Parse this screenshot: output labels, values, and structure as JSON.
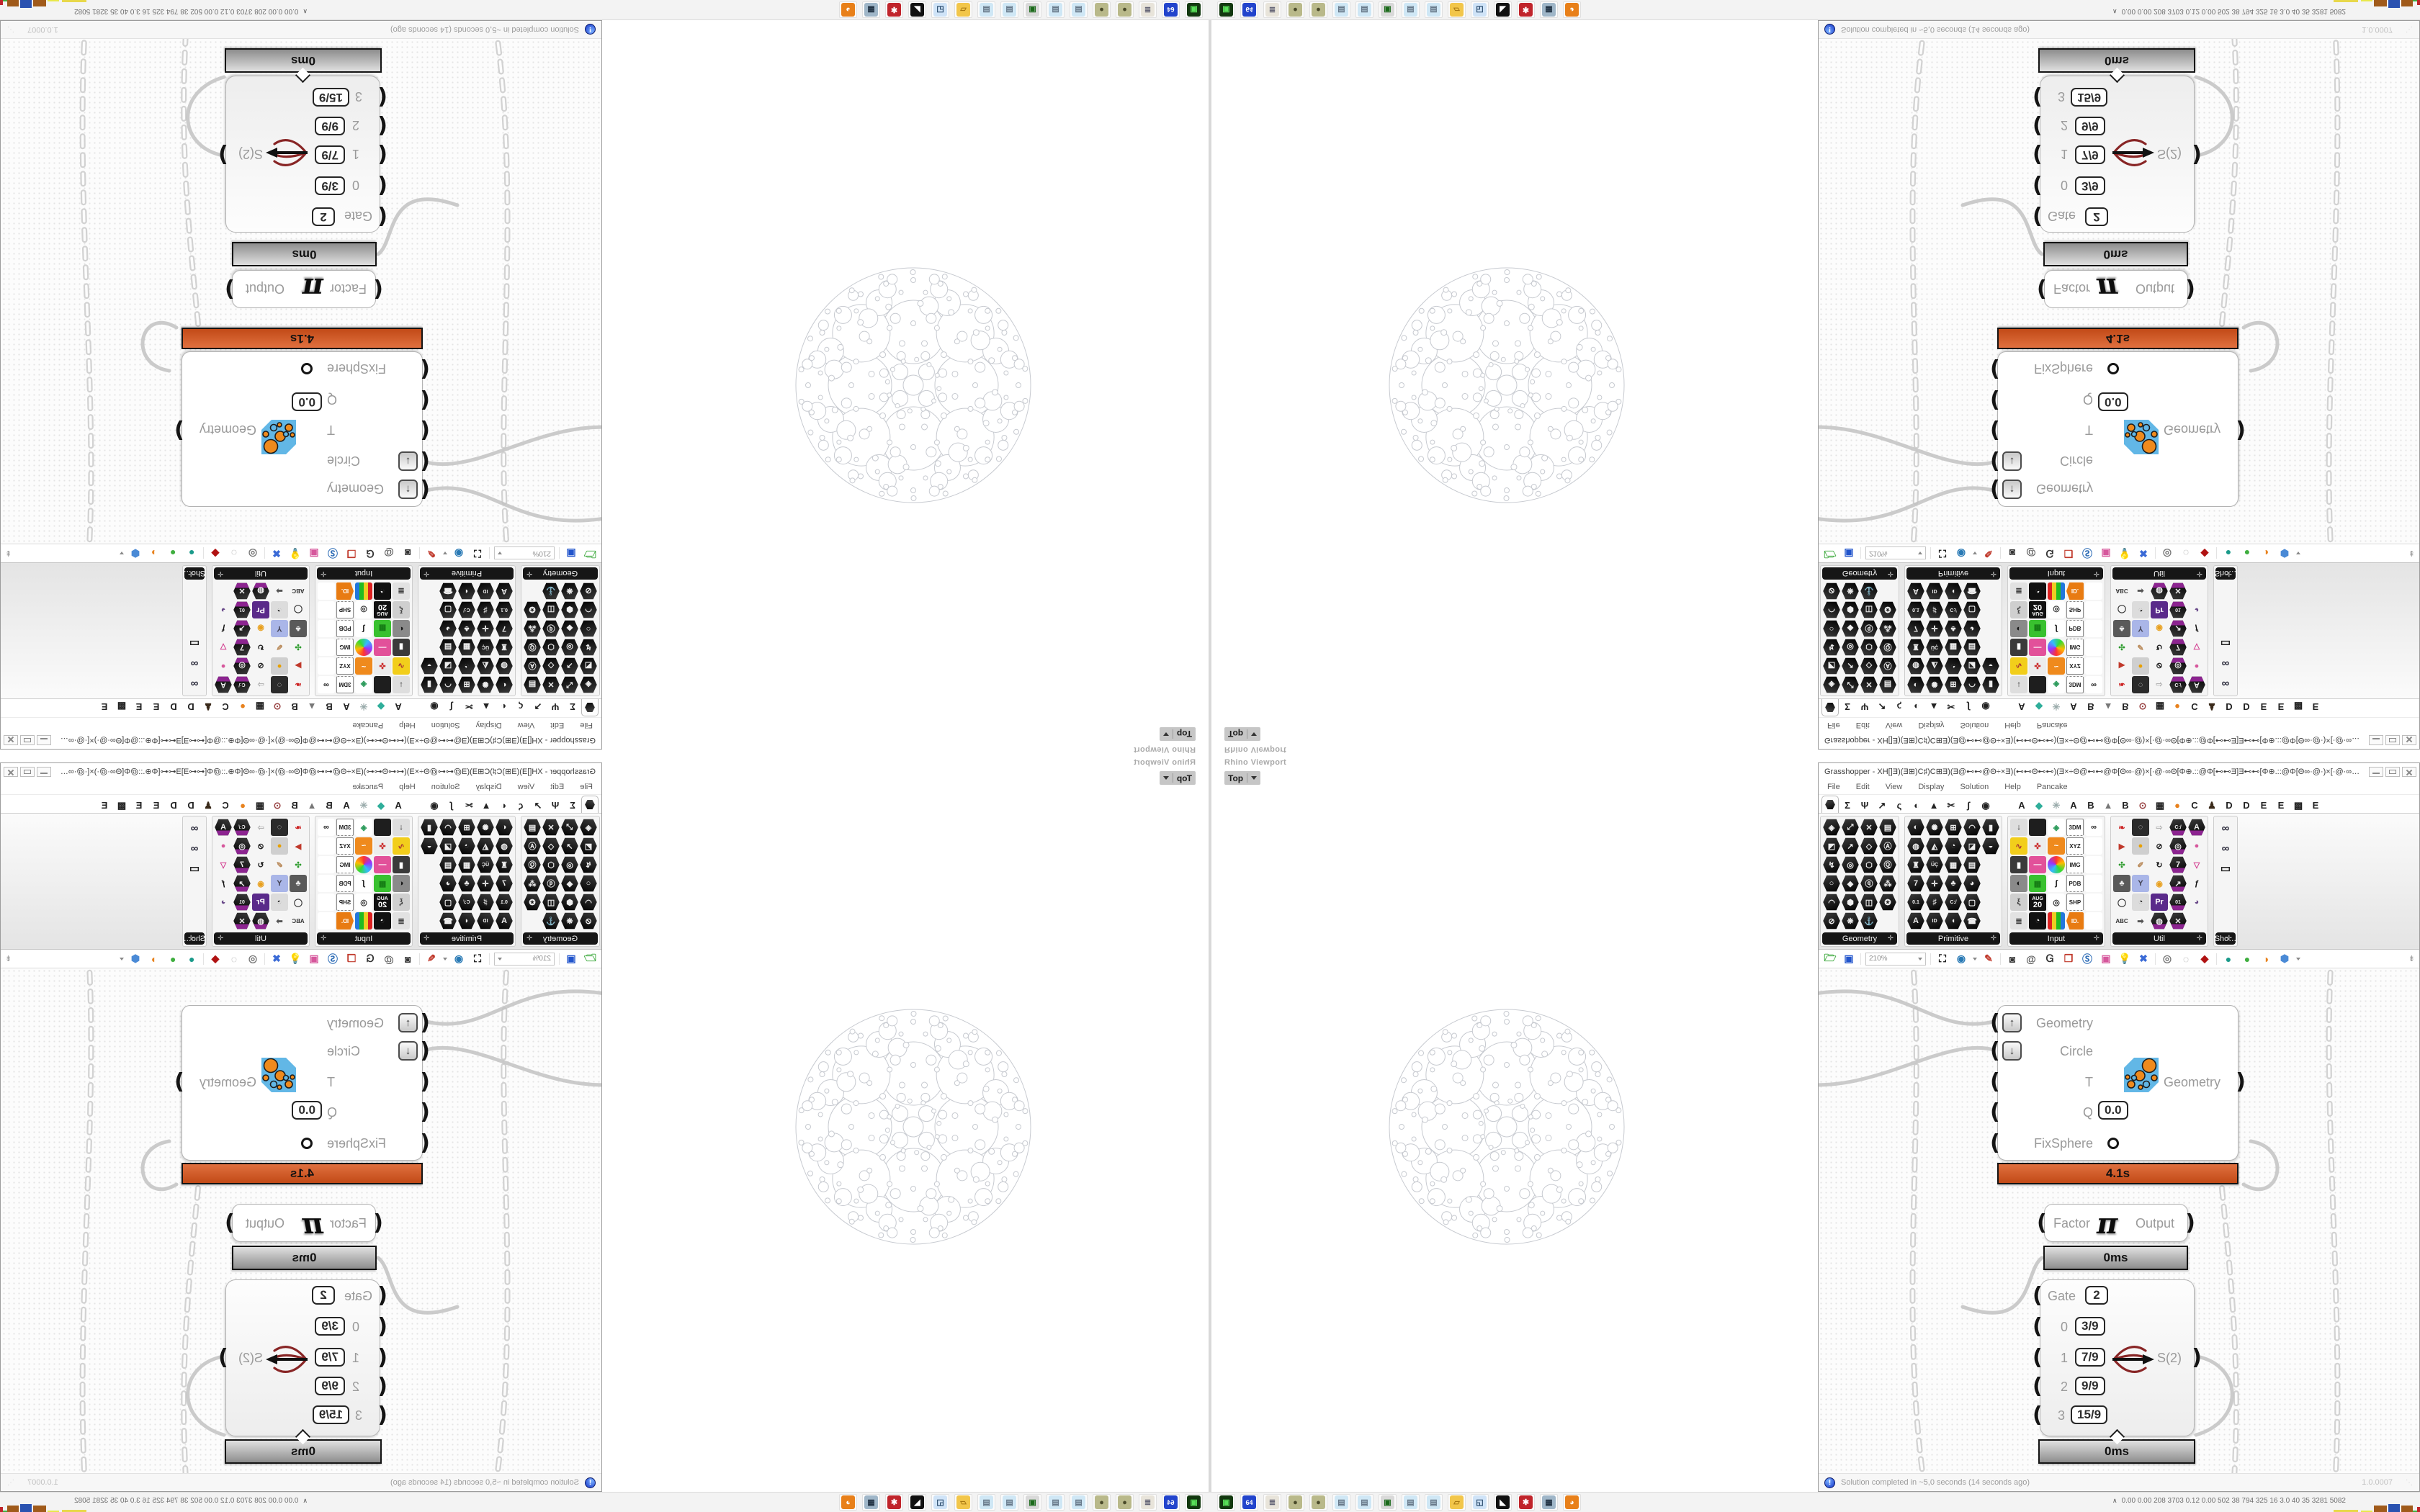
{
  "window": {
    "title": "Grasshopper - XH[]Ǝ)(Ǝ⊞)C♯)C⊞Ǝ)(Ǝ@⊷⊷@Θ÷×Ǝ)(⊷⊷Θ⊷⊷)(Ǝ×÷Θ@⊷⊷@Φ[Θ∞·@)×[·@·∞Θ[Φ⊕.::@Φ[⊷⊷Ǝ]Ǝ⊷⊷[Φ⊕.::@Φ[Θ∞·@·)×[·@·∞Θ[Φ⊕⊷⊷@Θ÷×Ǝ)(⊷⊷Θ⊷⊷...",
    "buttons": [
      "minimize",
      "maximize",
      "close"
    ]
  },
  "menu": {
    "items": [
      "File",
      "Edit",
      "View",
      "Display",
      "Solution",
      "Help",
      "Pancake"
    ]
  },
  "ribbon": {
    "tab_icons": [
      "params-hexagon",
      "sigma",
      "sets",
      "vector-arrow",
      "curve",
      "surface",
      "mesh",
      "intersect-scissors",
      "transform",
      "display-eye",
      "gap",
      "A",
      "gem",
      "flower",
      "A",
      "B",
      "mountain",
      "B",
      "shield",
      "grid",
      "orange-dot",
      "C",
      "bird",
      "D",
      "D",
      "E",
      "E",
      "checker",
      "E"
    ],
    "tab_glyphs": [
      {
        "g": "HEX"
      },
      {
        "g": "Σ"
      },
      {
        "g": "Ψ"
      },
      {
        "g": "↗"
      },
      {
        "g": "ς"
      },
      {
        "g": "◐"
      },
      {
        "g": "▲"
      },
      {
        "g": "✂"
      },
      {
        "g": "ʃ"
      },
      {
        "g": "◉"
      },
      {
        "g": "GAP"
      },
      {
        "g": "A"
      },
      {
        "g": "◆",
        "c": "#2fae9a"
      },
      {
        "g": "✳",
        "c": "#9aa"
      },
      {
        "g": "A"
      },
      {
        "g": "B"
      },
      {
        "g": "▲",
        "c": "#777"
      },
      {
        "g": "B"
      },
      {
        "g": "⊙",
        "c": "#944"
      },
      {
        "g": "▦"
      },
      {
        "g": "●",
        "c": "#e8821e"
      },
      {
        "g": "C"
      },
      {
        "g": "♟",
        "c": "#3a2a1a"
      },
      {
        "g": "D"
      },
      {
        "g": "D"
      },
      {
        "g": "E"
      },
      {
        "g": "E"
      },
      {
        "g": "▩"
      },
      {
        "g": "E"
      }
    ],
    "panels": [
      {
        "label": "Geometry",
        "style": "hex",
        "rows": [
          4,
          4,
          4,
          4,
          4,
          3
        ],
        "glyphs": [
          "◈",
          "⤢",
          "✕",
          "▤",
          "◩",
          "↗",
          "◇",
          "Ⓐ",
          "↯",
          "◎",
          "⬡",
          "Ⓠ",
          "○",
          "◆",
          "ⓠ",
          "⁂",
          "◠",
          "⬢",
          "◫",
          "✪",
          "⊘",
          "❋",
          "⚓"
        ]
      },
      {
        "label": "Primitive",
        "style": "hex",
        "rows": [
          5,
          5,
          4,
          4,
          4,
          4
        ],
        "glyphs": [
          "◐",
          "✺",
          "⊞",
          "◠",
          "▮",
          "◍",
          "◭",
          "◔",
          "◪",
          "◒",
          "♜",
          "ÜÇ",
          "▦",
          "▤",
          "7",
          "✛",
          "♣",
          "◕",
          "0.1",
          "♯",
          "C:/",
          "▢",
          "A",
          "ID",
          "◖",
          "☎"
        ]
      },
      {
        "label": "Input",
        "style": "mix",
        "cols": 5,
        "items": [
          {
            "g": "↓",
            "bg": "#dedede",
            "fg": "#222"
          },
          {
            "g": "",
            "bg": "#1e1e1e"
          },
          {
            "g": "◈",
            "bg": "#fff",
            "fg": "#2a9a5a"
          },
          {
            "t": "3DM"
          },
          {
            "g": "∞",
            "bg": "#fff",
            "fg": "#222"
          },
          {
            "g": "∿",
            "bg": "#f2ce1b",
            "fg": "#a33"
          },
          {
            "g": "✜",
            "bg": "#ececec",
            "fg": "#c33"
          },
          {
            "g": "~",
            "bg": "#ef8a1d",
            "fg": "#fff"
          },
          {
            "t": "XYZ"
          },
          {
            "g": "",
            "bg": "#fff"
          },
          {
            "g": "▮",
            "bg": "#3a3a3a",
            "fg": "#fff"
          },
          {
            "g": "—",
            "bg": "#e2519a",
            "fg": "#fff"
          },
          {
            "w": 1
          },
          {
            "t": "IMG"
          },
          {
            "g": "",
            "bg": "#fff"
          },
          {
            "g": "◐",
            "bg": "#8a8a8a",
            "fg": "#111"
          },
          {
            "g": "▦",
            "bg": "#39c12f",
            "fg": "#147a14"
          },
          {
            "g": "∫",
            "bg": "#fff",
            "fg": "#111"
          },
          {
            "t": "PDB"
          },
          {
            "g": "",
            "bg": "#fff"
          },
          {
            "g": "ξ",
            "bg": "#cfcfcf",
            "fg": "#333"
          },
          {
            "cal": [
              "AUG",
              "20"
            ]
          },
          {
            "g": "◎",
            "bg": "#fff",
            "fg": "#333"
          },
          {
            "t": "SHP"
          },
          {
            "g": "",
            "bg": "#fff"
          },
          {
            "g": "≣",
            "bg": "#e2e2e2",
            "fg": "#444"
          },
          {
            "g": "◔",
            "bg": "#111",
            "fg": "#fff"
          },
          {
            "b": 1
          },
          {
            "tag": "ID."
          },
          {
            "g": "",
            "bg": "#fff"
          }
        ]
      },
      {
        "label": "Util",
        "style": "mix",
        "cols": 5,
        "items": [
          {
            "g": "❧",
            "fg": "#c22"
          },
          {
            "g": "◌",
            "bg": "#2b2b2b",
            "fg": "#ddd"
          },
          {
            "g": "⇨",
            "fg": "#b5b5b5"
          },
          {
            "hp": "C:/"
          },
          {
            "hp": "A"
          },
          {
            "g": "▶",
            "fg": "#c0392b"
          },
          {
            "g": "●",
            "bg": "#cfcfcf",
            "fg": "#e8a000"
          },
          {
            "g": "⊘",
            "fg": "#222"
          },
          {
            "hp": "◎"
          },
          {
            "g": "●",
            "fg": "#d6579c"
          },
          {
            "g": "✣",
            "fg": "#2a9a2a"
          },
          {
            "g": "✐",
            "fg": "#b98a5a"
          },
          {
            "g": "↻",
            "fg": "#222"
          },
          {
            "hp": "7"
          },
          {
            "g": "▽",
            "fg": "#d23a8e"
          },
          {
            "g": "♣",
            "bg": "#5a5a5a",
            "fg": "#eee"
          },
          {
            "g": "Y",
            "bg": "#aab6e8",
            "fg": "#445"
          },
          {
            "g": "◉",
            "fg": "#e8a01e"
          },
          {
            "hp": "↗"
          },
          {
            "g": "ƒ",
            "fg": "#111"
          },
          {
            "g": "◯",
            "fg": "#333"
          },
          {
            "g": "◔",
            "bg": "#dcdcdc",
            "fg": "#222"
          },
          {
            "g": "Pr",
            "bg": "#5a2a8a",
            "fg": "#fff"
          },
          {
            "hp": "01"
          },
          {
            "g": "◕",
            "fg": "#6a4a8a"
          },
          {
            "g": "ABC",
            "fg": "#333"
          },
          {
            "g": "➡",
            "fg": "#555"
          },
          {
            "hp": "◍"
          },
          {
            "hp": "✕"
          }
        ]
      },
      {
        "label": "Sho…",
        "style": "mini",
        "items": [
          {
            "g": "∞",
            "fg": "#223"
          },
          {
            "g": "∞",
            "fg": "#223"
          },
          {
            "g": "▭",
            "fg": "#222"
          }
        ]
      }
    ],
    "input_file_chips": [
      "3DM",
      "XYZ",
      "IMG",
      "PDB",
      "SHP"
    ],
    "calendar": {
      "month": "AUG",
      "day": "20"
    },
    "id_tag": "ID."
  },
  "toolbar": {
    "zoom_value": "210%",
    "icons": [
      {
        "name": "open-file-icon",
        "g": "🗁",
        "c": "#3faa3f"
      },
      {
        "name": "save-file-icon",
        "g": "▣",
        "c": "#2255cc"
      },
      {
        "name": "zoom-box",
        "g": "ZOOM"
      },
      {
        "name": "zoom-extents-icon",
        "g": "⛶",
        "c": "#111"
      },
      {
        "name": "preview-eye-icon",
        "g": "◉",
        "c": "#2a7ab5"
      },
      {
        "name": "sketch-pen-icon",
        "g": "✎",
        "c": "#c0392b"
      },
      {
        "name": "cluster-icon",
        "g": "◙",
        "c": "#333"
      },
      {
        "name": "stamp-icon",
        "g": "@",
        "c": "#555"
      },
      {
        "name": "gha-icon",
        "g": "Ꮐ",
        "c": "#333"
      },
      {
        "name": "window-alert-icon",
        "g": "❒",
        "c": "#c0392b"
      },
      {
        "name": "finder-icon",
        "g": "Ⓢ",
        "c": "#2a6ab5"
      },
      {
        "name": "package-icon",
        "g": "▣",
        "c": "#d6579c"
      },
      {
        "name": "balloon-icon",
        "g": "💡",
        "c": "#8a6ad6"
      },
      {
        "name": "jack-icon",
        "g": "✖",
        "c": "#3a6ad6"
      },
      {
        "name": "spheres-icon",
        "g": "◎",
        "c": "#777"
      },
      {
        "name": "rings-icon",
        "g": "◌",
        "c": "#999"
      },
      {
        "name": "gem-icon",
        "g": "◆",
        "c": "#b01212"
      },
      {
        "name": "teal-sphere-icon",
        "g": "●",
        "c": "#1a9a8a"
      },
      {
        "name": "green-sphere-icon",
        "g": "●",
        "c": "#3fae3f"
      },
      {
        "name": "orange-sphere-icon",
        "g": "◑",
        "c": "#e8821e"
      },
      {
        "name": "blue-hex-icon",
        "g": "⬢",
        "c": "#4a8ad6"
      }
    ]
  },
  "canvas": {
    "fix_component": {
      "inputs": [
        "Geometry",
        "Circle",
        "T",
        "Q",
        "FixSphere"
      ],
      "q_value": "0.0",
      "output_label": "Geometry",
      "profiler": "4.1s"
    },
    "pi_component": {
      "input_label": "Factor",
      "symbol": "π",
      "output_label": "Output",
      "profiler": "0ms"
    },
    "gate_panel": {
      "gate_label": "Gate",
      "gate_value": "2",
      "rows": [
        {
          "index": "0",
          "value": "3/9"
        },
        {
          "index": "1",
          "value": "7/9"
        },
        {
          "index": "2",
          "value": "9/9"
        },
        {
          "index": "3",
          "value": "15/9"
        }
      ],
      "selected_label": "S(2)",
      "profiler": "0ms"
    }
  },
  "statusbar": {
    "message": "Solution completed in ~5,0 seconds (14 seconds ago)",
    "version": "1.0.0007"
  },
  "viewport": {
    "panel_title": "Rhino Viewport",
    "tab_label": "Top"
  },
  "taskbar": {
    "stats": "0.00 0.00  208  3703 0.12 0.00  502   38   794  325   16   3.0   40    35  3281 5082",
    "icon_names": [
      "console-icon",
      "floppy64-icon",
      "printer-icon",
      "ball-icon",
      "ball-icon",
      "notepad-icon",
      "notepad-icon",
      "pc-monitor-icon",
      "notepad-icon",
      "notepad-icon",
      "folder-icon",
      "display-settings-icon",
      "cat-icon",
      "red-gear-icon",
      "calculator-icon",
      "firefox-icon"
    ],
    "icons": [
      {
        "g": "▣",
        "bg": "#12380f",
        "fg": "#58e058"
      },
      {
        "g": "64",
        "bg": "#2244cc",
        "fg": "#fff"
      },
      {
        "g": "≣",
        "bg": "#e8e4da",
        "fg": "#667"
      },
      {
        "g": "●",
        "bg": "#b9b98a",
        "fg": "#4a4a2a"
      },
      {
        "g": "●",
        "bg": "#b9b98a",
        "fg": "#4a4a2a"
      },
      {
        "g": "▤",
        "bg": "#cfe7f5",
        "fg": "#678"
      },
      {
        "g": "▤",
        "bg": "#cfe7f5",
        "fg": "#678"
      },
      {
        "g": "▣",
        "bg": "#d9d9d9",
        "fg": "#1a6a1a"
      },
      {
        "g": "▤",
        "bg": "#cfe7f5",
        "fg": "#678"
      },
      {
        "g": "▤",
        "bg": "#cfe7f5",
        "fg": "#678"
      },
      {
        "g": "▱",
        "bg": "#f2c64a",
        "fg": "#a87812"
      },
      {
        "g": "◱",
        "bg": "#cfe3f7",
        "fg": "#246"
      },
      {
        "g": "◣",
        "bg": "#111",
        "fg": "#fff"
      },
      {
        "g": "✱",
        "bg": "#c0242b",
        "fg": "#fff"
      },
      {
        "g": "▦",
        "bg": "#9fb6c8",
        "fg": "#234"
      },
      {
        "g": "◕",
        "bg": "#e8801a",
        "fg": "#fff"
      }
    ]
  }
}
